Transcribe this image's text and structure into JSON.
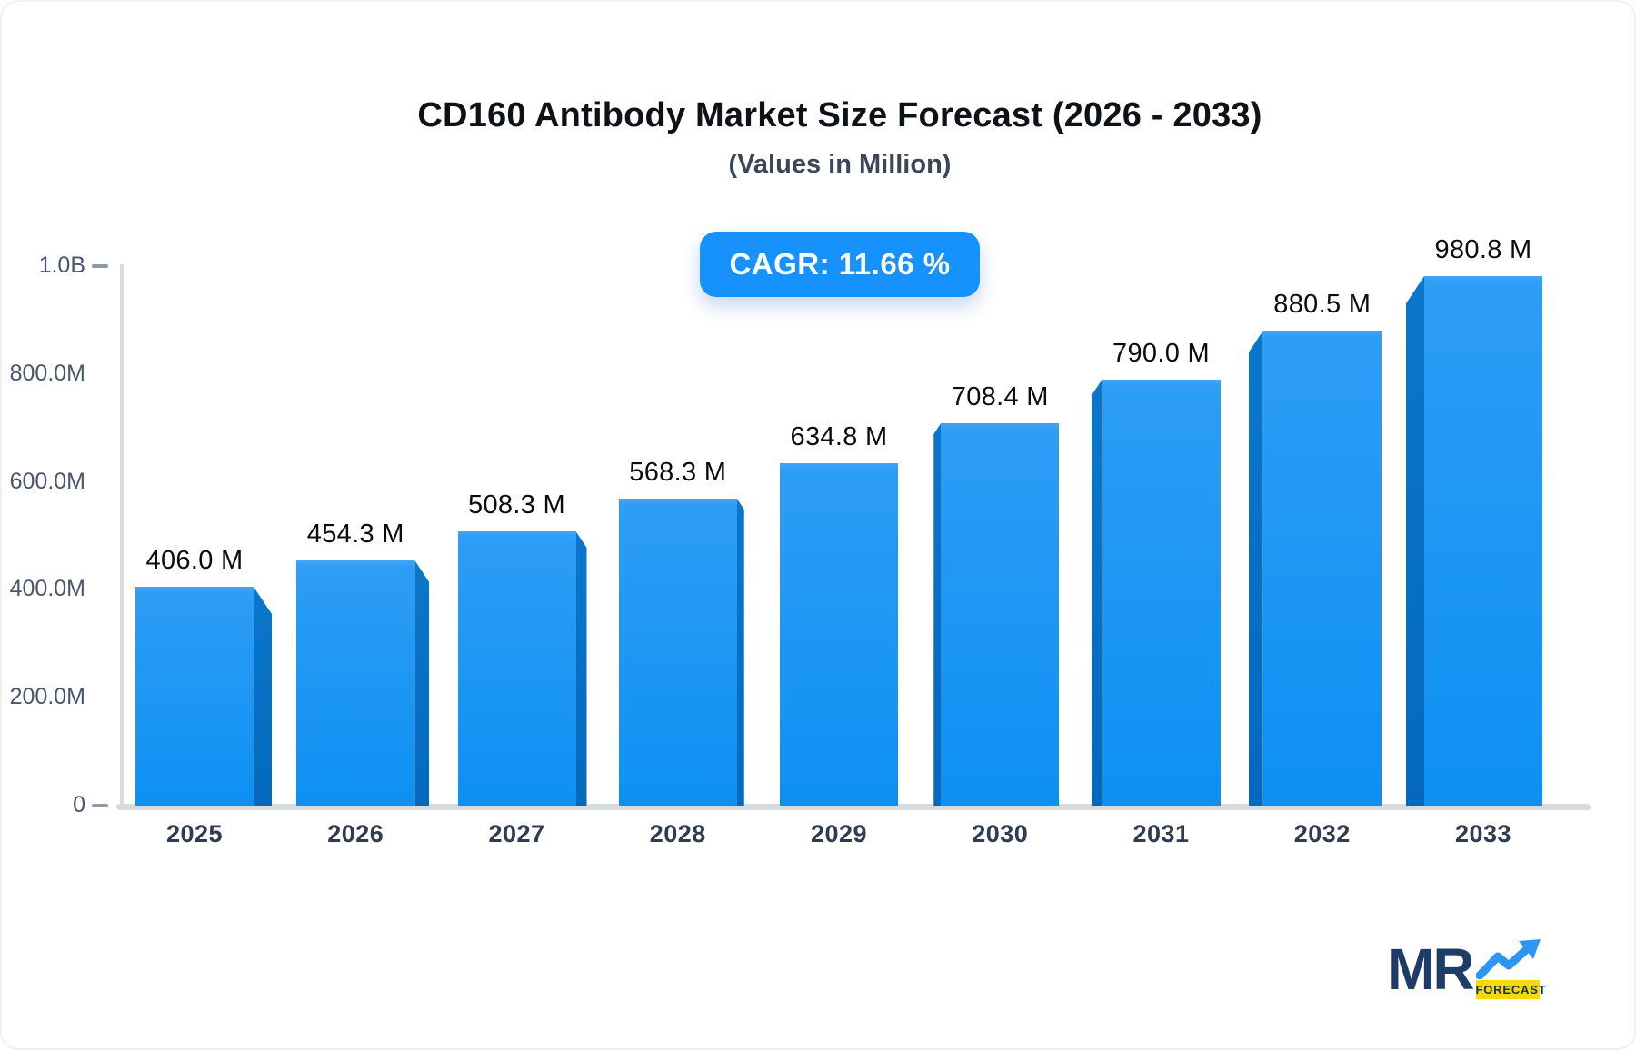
{
  "header": {
    "title": "CD160 Antibody Market Size Forecast (2026 - 2033)",
    "subtitle": "(Values in Million)",
    "cagr_label": "CAGR: 11.66 %"
  },
  "logo": {
    "mr": "MR",
    "forecast": "FORECAST"
  },
  "colors": {
    "bar_face_top": "#38a1f6",
    "bar_face_bottom": "#0d90f3",
    "bar_side": "#0571c4",
    "badge_bg": "#1791fc",
    "axis_gray": "#d9dade",
    "tick_text": "#49566c",
    "year_text": "#2e3b50",
    "value_text": "#0b0c0e",
    "logo_navy": "#1d3c66",
    "logo_yellow": "#f7d908",
    "arrow_blue": "#2b97f3"
  },
  "chart_data": {
    "type": "bar",
    "title": "CD160 Antibody Market Size Forecast (2026 - 2033)",
    "subtitle": "(Values in Million)",
    "cagr": "11.66 %",
    "categories": [
      "2025",
      "2026",
      "2027",
      "2028",
      "2029",
      "2030",
      "2031",
      "2032",
      "2033"
    ],
    "values": [
      406.0,
      454.3,
      508.3,
      568.3,
      634.8,
      708.4,
      790.0,
      880.5,
      980.8
    ],
    "value_labels": [
      "406.0 M",
      "454.3 M",
      "508.3 M",
      "568.3 M",
      "634.8 M",
      "708.4 M",
      "790.0 M",
      "880.5 M",
      "980.8 M"
    ],
    "xlabel": "",
    "ylabel": "",
    "ylim": [
      0,
      1000
    ],
    "yticks": [
      {
        "label": "1.0B",
        "value": 1000,
        "dash": true
      },
      {
        "label": "800.0M",
        "value": 800,
        "dash": false
      },
      {
        "label": "600.0M",
        "value": 600,
        "dash": false
      },
      {
        "label": "400.0M",
        "value": 400,
        "dash": false
      },
      {
        "label": "200.0M",
        "value": 200,
        "dash": false
      },
      {
        "label": "0",
        "value": 0,
        "dash": true
      }
    ],
    "grid": false,
    "legend": null,
    "bar_style": "3d-perspective"
  }
}
